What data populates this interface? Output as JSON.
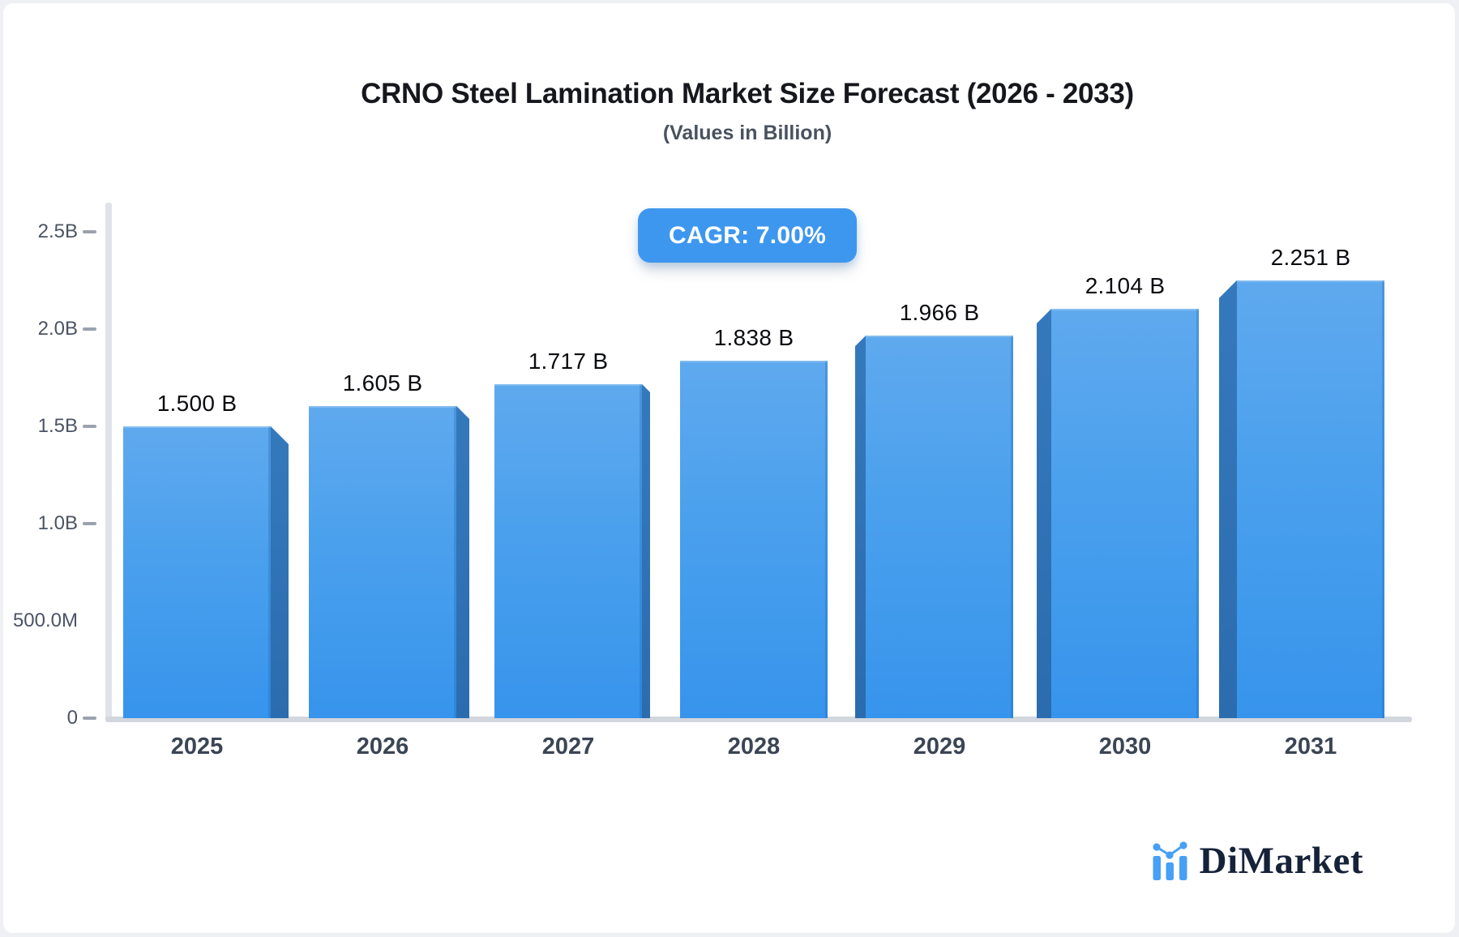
{
  "header": {
    "title": "CRNO Steel Lamination Market Size Forecast (2026 - 2033)",
    "subtitle": "(Values in Billion)",
    "cagr_label": "CAGR: 7.00%"
  },
  "chart_data": {
    "type": "bar",
    "title": "CRNO Steel Lamination Market Size Forecast (2026 - 2033)",
    "subtitle": "(Values in Billion)",
    "cagr": "7.00%",
    "categories": [
      "2025",
      "2026",
      "2027",
      "2028",
      "2029",
      "2030",
      "2031"
    ],
    "values": [
      1.5,
      1.605,
      1.717,
      1.838,
      1.966,
      2.104,
      2.251
    ],
    "bar_labels": [
      "1.500 B",
      "1.605 B",
      "1.717 B",
      "1.838 B",
      "1.966 B",
      "2.104 B",
      "2.251 B"
    ],
    "unit": "Billion",
    "ylim": [
      0,
      2.5
    ],
    "yticks": [
      {
        "value": 0,
        "label": "0",
        "dash": true
      },
      {
        "value": 0.5,
        "label": "500.0M",
        "dash": false
      },
      {
        "value": 1.0,
        "label": "1.0B",
        "dash": true
      },
      {
        "value": 1.5,
        "label": "1.5B",
        "dash": true
      },
      {
        "value": 2.0,
        "label": "2.0B",
        "dash": true
      },
      {
        "value": 2.5,
        "label": "2.5B",
        "dash": true
      }
    ],
    "grid": false,
    "legend": "none",
    "colors": {
      "bar_face_top": "#5fa9ee",
      "bar_face_bottom": "#3794ec",
      "bar_side": "#2e72b6",
      "axis": "#d2d6dd",
      "tick_dash": "#9aa2ae",
      "badge_background": "#3e97ee",
      "badge_text": "#ffffff"
    }
  },
  "branding": {
    "logo_text": "DiMarket",
    "logo_icon": "bar-chart-icon",
    "logo_icon_color": "#47a0f5",
    "logo_text_color": "#152238"
  }
}
